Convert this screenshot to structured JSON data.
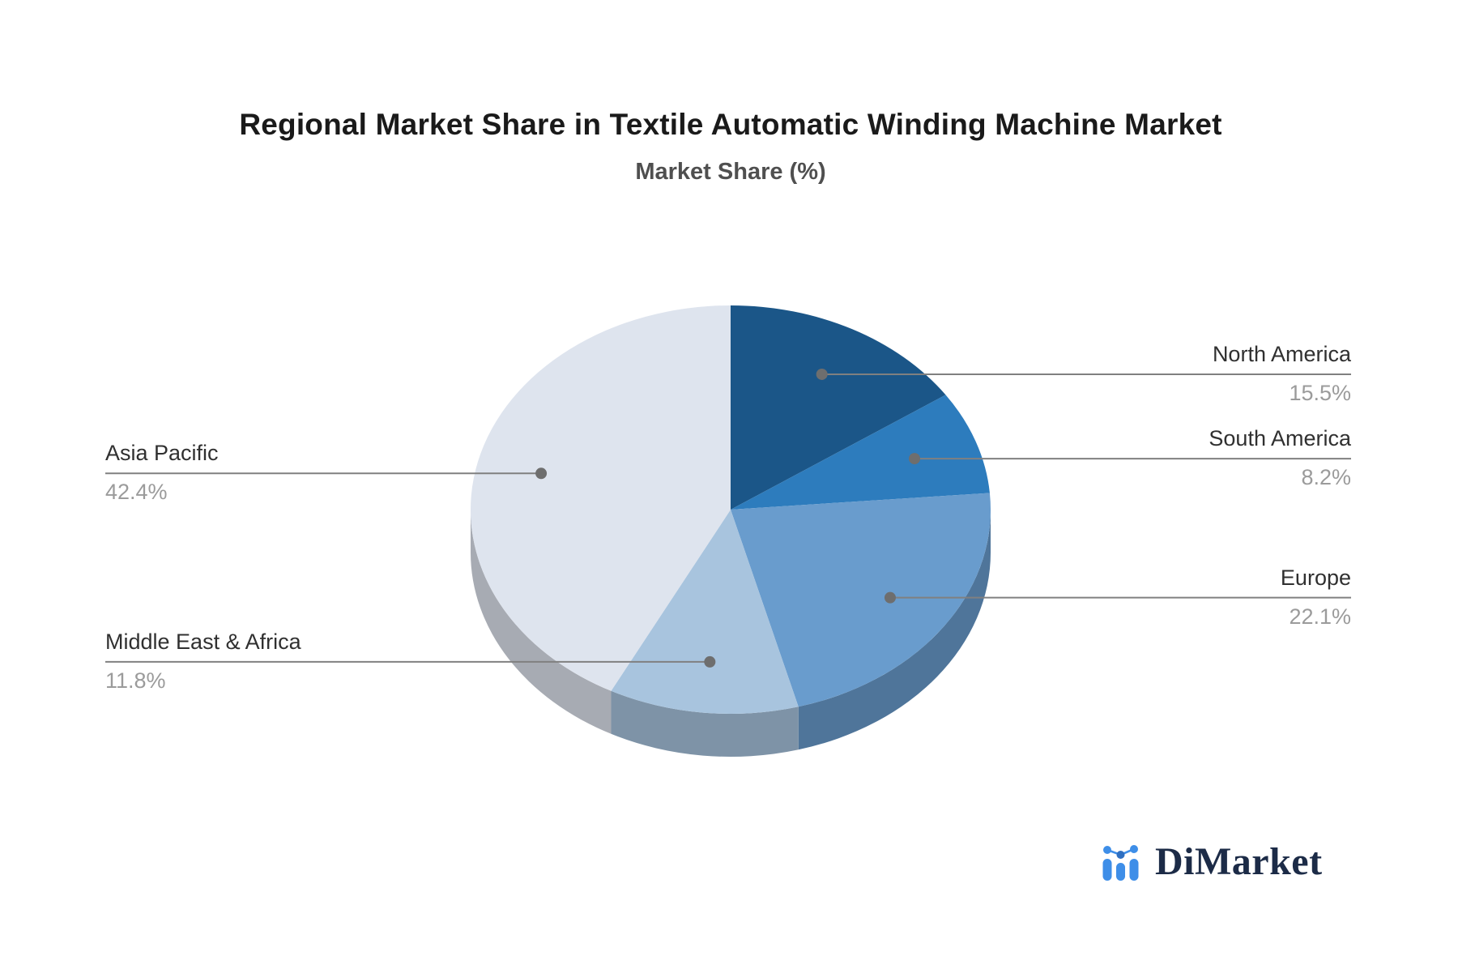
{
  "chart_data": {
    "type": "pie",
    "title": "Regional Market Share in Textile Automatic Winding Machine Market",
    "subtitle": "Market Share (%)",
    "unit": "%",
    "effect_3d": true,
    "start_angle": "top-clockwise",
    "legend_position": "callout-labels",
    "leader_line_color": "#808080",
    "leader_dot_color": "#6e6e6e",
    "label_name_color": "#303030",
    "label_value_color": "#9b9b9b",
    "slices": [
      {
        "name": "North America",
        "value": 15.5,
        "pct_label": "15.5%",
        "color": "#1B5688"
      },
      {
        "name": "South America",
        "value": 8.2,
        "pct_label": "8.2%",
        "color": "#2D7CBD"
      },
      {
        "name": "Europe",
        "value": 22.1,
        "pct_label": "22.1%",
        "color": "#699CCD"
      },
      {
        "name": "Middle East & Africa",
        "value": 11.8,
        "pct_label": "11.8%",
        "color": "#A8C4DE"
      },
      {
        "name": "Asia Pacific",
        "value": 42.4,
        "pct_label": "42.4%",
        "color": "#DEE4EE"
      }
    ]
  },
  "branding": {
    "logo_text": "DiMarket",
    "logo_text_color": "#1c2b47",
    "logo_bar_color": "#3E8EE8",
    "logo_accent_color": "#2F6FC1"
  }
}
